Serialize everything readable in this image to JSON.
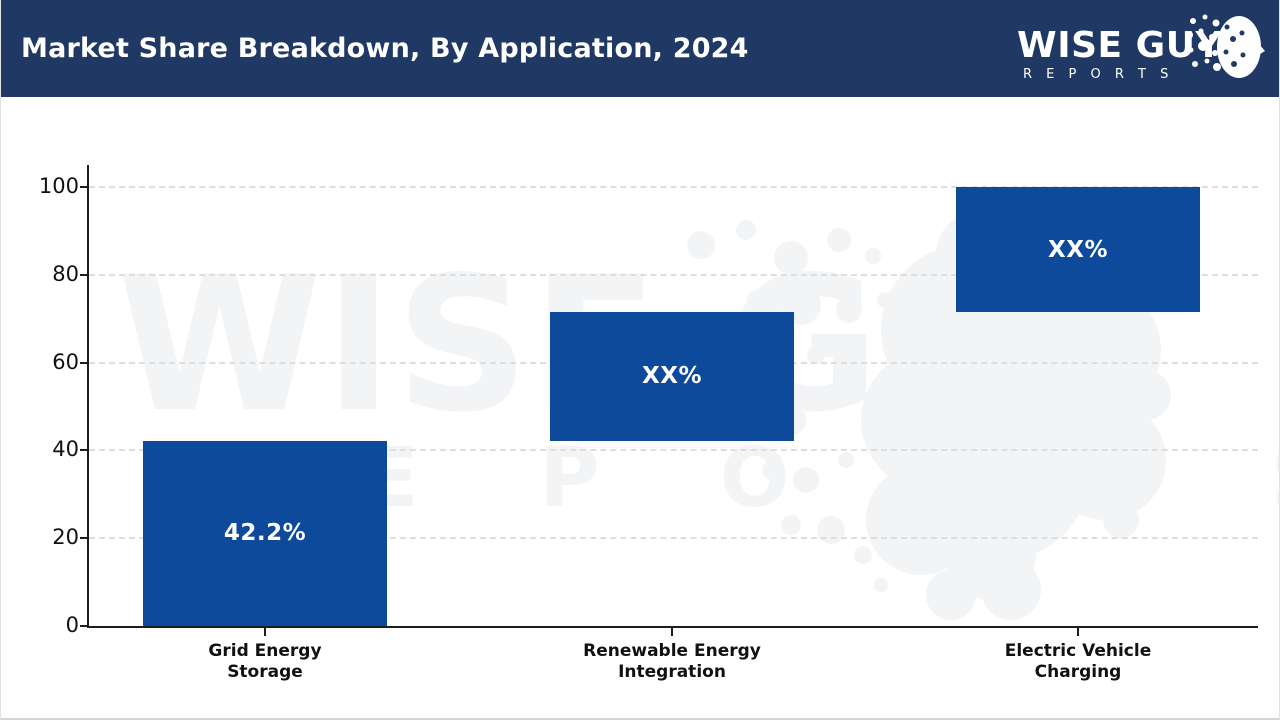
{
  "header": {
    "title": "Market Share Breakdown, By Application, 2024",
    "logo": {
      "line1": "WISE GUY",
      "line2": "R E P O R T S"
    }
  },
  "watermark": {
    "line1": "WISE GUY",
    "line2": "R E P O R T S"
  },
  "colors": {
    "header_bg": "#1f3864",
    "bar": "#0d4a9c",
    "grid": "#dedede",
    "axis": "#1c1c1c",
    "watermark": "#f3f4f6",
    "bar_label": "#ffffff"
  },
  "chart_data": {
    "type": "bar",
    "variant": "floating-waterfall",
    "title": "Market Share Breakdown, By Application, 2024",
    "categories": [
      "Grid Energy Storage",
      "Renewable Energy Integration",
      "Electric Vehicle Charging"
    ],
    "category_label_lines": [
      [
        "Grid Energy",
        "Storage"
      ],
      [
        "Renewable Energy",
        "Integration"
      ],
      [
        "Electric Vehicle",
        "Charging"
      ]
    ],
    "segments": [
      {
        "category": "Grid Energy Storage",
        "start": 0,
        "end": 42.2,
        "label": "42.2%"
      },
      {
        "category": "Renewable Energy Integration",
        "start": 42.2,
        "end": 71.5,
        "label": "XX%"
      },
      {
        "category": "Electric Vehicle Charging",
        "start": 71.5,
        "end": 100,
        "label": "XX%"
      }
    ],
    "yticks": [
      0,
      20,
      40,
      60,
      80,
      100
    ],
    "ylim": [
      0,
      105
    ],
    "xlabel": "",
    "ylabel": "",
    "grid": "horizontal-dashed",
    "legend": "none"
  }
}
